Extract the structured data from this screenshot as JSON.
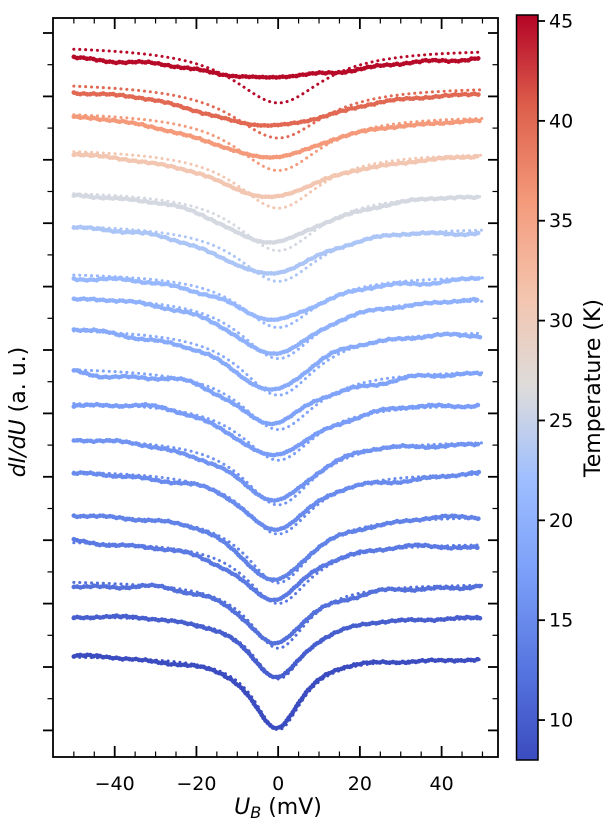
{
  "chart_data": {
    "type": "line",
    "title": "",
    "xlabel": "U_B (mV)",
    "xlabel_parts": {
      "var": "U",
      "sub": "B",
      "rest": " (mV)"
    },
    "ylabel": "dI/dU (a. u.)",
    "ylabel_parts": {
      "var": "dI/dU",
      "rest": " (a. u.)"
    },
    "axes": {
      "xlim": [
        -55.1,
        53.8
      ],
      "x_data_range": [
        -50,
        50
      ],
      "x_tick_values": [
        -40,
        -20,
        0,
        20,
        40
      ],
      "x_tick_labels": [
        "−40",
        "−20",
        "0",
        "20",
        "40"
      ],
      "x_minor_step": 5,
      "y_tick_labels_shown": false,
      "grid": false
    },
    "colorbar": {
      "label": "Temperature (K)",
      "unit": "K",
      "vmin": 8.0,
      "vmax": 45.3,
      "tick_values": [
        10,
        15,
        20,
        25,
        30,
        35,
        40,
        45
      ],
      "tick_labels": [
        "10",
        "15",
        "20",
        "25",
        "30",
        "35",
        "40",
        "45"
      ],
      "colormap": "coolwarm",
      "gradient_stops": [
        [
          "0.000",
          "#3b4cc0"
        ],
        [
          "0.125",
          "#5776e0"
        ],
        [
          "0.250",
          "#7b9ff9"
        ],
        [
          "0.375",
          "#9ebeff"
        ],
        [
          "0.500",
          "#dddcdb"
        ],
        [
          "0.625",
          "#f4c4ad"
        ],
        [
          "0.750",
          "#f49a7b"
        ],
        [
          "0.875",
          "#de604d"
        ],
        [
          "1.000",
          "#b40426"
        ]
      ]
    },
    "series_note": "dI/dU spectra (dotted-marker solid lines = measured data, sparse dotted lines = fits), vertically offset, dip centered at U_B ~ 0 mV; offsets/depths in arbitrary units (0-100 of panel height), widths in mV",
    "series": [
      {
        "temperature": 45,
        "offset": 95.4,
        "tilt": 0.4,
        "depth": 3.8,
        "width": 27.0,
        "center": -3.0,
        "fit_extra_depth": 3.8,
        "fit_width_factor": 0.5,
        "fit_base_shift": 0.5,
        "noise_amp": 0.45,
        "seed": 1
      },
      {
        "temperature": 40,
        "offset": 90.5,
        "tilt": 0.5,
        "depth": 5.3,
        "width": 23.0,
        "center": -3.0,
        "fit_extra_depth": 2.0,
        "fit_width_factor": 0.6,
        "fit_base_shift": 0.3,
        "noise_amp": 0.25,
        "seed": 2
      },
      {
        "temperature": 36,
        "offset": 86.9,
        "tilt": 0.5,
        "depth": 6.0,
        "width": 20.0,
        "center": -2.5,
        "fit_extra_depth": 1.8,
        "fit_width_factor": 0.65,
        "fit_base_shift": 0.0,
        "noise_amp": 0.2,
        "seed": 3
      },
      {
        "temperature": 31,
        "offset": 81.9,
        "tilt": 0.5,
        "depth": 6.4,
        "width": 18.0,
        "center": -2.5,
        "fit_extra_depth": 1.5,
        "fit_width_factor": 0.7,
        "fit_base_shift": 0.0,
        "noise_amp": 0.2,
        "seed": 4
      },
      {
        "temperature": 26,
        "offset": 76.3,
        "tilt": 0.4,
        "depth": 6.8,
        "width": 16.5,
        "center": -2.0,
        "fit_extra_depth": 1.2,
        "fit_width_factor": 0.75,
        "fit_base_shift": 0.0,
        "noise_amp": 0.3,
        "seed": 5
      },
      {
        "temperature": 23,
        "offset": 71.7,
        "tilt": 0.5,
        "depth": 6.6,
        "width": 15.5,
        "center": -2.0,
        "fit_extra_depth": 1.0,
        "fit_width_factor": 0.78,
        "fit_base_shift": 0.0,
        "noise_amp": 0.4,
        "seed": 6
      },
      {
        "temperature": 21,
        "offset": 65.2,
        "tilt": 0.4,
        "depth": 6.4,
        "width": 14.5,
        "center": -1.5,
        "fit_extra_depth": 0.9,
        "fit_width_factor": 0.8,
        "fit_base_shift": 0.0,
        "noise_amp": 0.5,
        "seed": 7
      },
      {
        "temperature": 20,
        "offset": 62.1,
        "tilt": 0.4,
        "depth": 7.6,
        "width": 14.0,
        "center": -1.5,
        "fit_extra_depth": 0.8,
        "fit_width_factor": 0.83,
        "fit_base_shift": 0.0,
        "noise_amp": 0.4,
        "seed": 8
      },
      {
        "temperature": 19,
        "offset": 57.8,
        "tilt": 0.3,
        "depth": 8.2,
        "width": 13.5,
        "center": -1.5,
        "fit_extra_depth": 0.8,
        "fit_width_factor": 0.85,
        "fit_base_shift": 0.0,
        "noise_amp": 0.5,
        "seed": 9
      },
      {
        "temperature": 18,
        "offset": 52.4,
        "tilt": 0.4,
        "depth": 7.6,
        "width": 13.0,
        "center": -1.5,
        "fit_extra_depth": 0.7,
        "fit_width_factor": 0.87,
        "fit_base_shift": 0.0,
        "noise_amp": 0.7,
        "seed": 10
      },
      {
        "temperature": 17,
        "offset": 47.9,
        "tilt": 0.3,
        "depth": 7.2,
        "width": 12.5,
        "center": -1.5,
        "fit_extra_depth": 0.7,
        "fit_width_factor": 0.88,
        "fit_base_shift": 0.0,
        "noise_amp": 0.5,
        "seed": 11
      },
      {
        "temperature": 16,
        "offset": 42.9,
        "tilt": 0.4,
        "depth": 8.4,
        "width": 12.0,
        "center": -1.0,
        "fit_extra_depth": 0.6,
        "fit_width_factor": 0.89,
        "fit_base_shift": 0.0,
        "noise_amp": 0.4,
        "seed": 12
      },
      {
        "temperature": 15,
        "offset": 38.6,
        "tilt": 0.3,
        "depth": 8.0,
        "width": 11.5,
        "center": -1.0,
        "fit_extra_depth": 0.6,
        "fit_width_factor": 0.9,
        "fit_base_shift": 0.0,
        "noise_amp": 0.5,
        "seed": 13
      },
      {
        "temperature": 14,
        "offset": 32.7,
        "tilt": 0.3,
        "depth": 8.8,
        "width": 11.0,
        "center": -1.0,
        "fit_extra_depth": 0.5,
        "fit_width_factor": 0.9,
        "fit_base_shift": 0.0,
        "noise_amp": 0.4,
        "seed": 14
      },
      {
        "temperature": 13,
        "offset": 29.0,
        "tilt": 0.3,
        "depth": 7.9,
        "width": 10.5,
        "center": -1.0,
        "fit_extra_depth": 0.5,
        "fit_width_factor": 0.92,
        "fit_base_shift": 0.0,
        "noise_amp": 0.5,
        "seed": 15
      },
      {
        "temperature": 12,
        "offset": 23.5,
        "tilt": 0.4,
        "depth": 8.6,
        "width": 9.5,
        "center": -1.0,
        "fit_extra_depth": 0.4,
        "fit_width_factor": 0.92,
        "fit_base_shift": 0.0,
        "noise_amp": 0.7,
        "seed": 16
      },
      {
        "temperature": 10,
        "offset": 18.9,
        "tilt": 0.3,
        "depth": 8.2,
        "width": 8.5,
        "center": -0.5,
        "fit_extra_depth": 0.3,
        "fit_width_factor": 0.94,
        "fit_base_shift": 0.0,
        "noise_amp": 0.3,
        "seed": 17
      },
      {
        "temperature": 8,
        "offset": 13.4,
        "tilt": 0.3,
        "depth": 9.6,
        "width": 7.5,
        "center": -0.5,
        "fit_extra_depth": 0.3,
        "fit_width_factor": 0.95,
        "fit_base_shift": 0.0,
        "noise_amp": 0.35,
        "seed": 18
      }
    ]
  }
}
